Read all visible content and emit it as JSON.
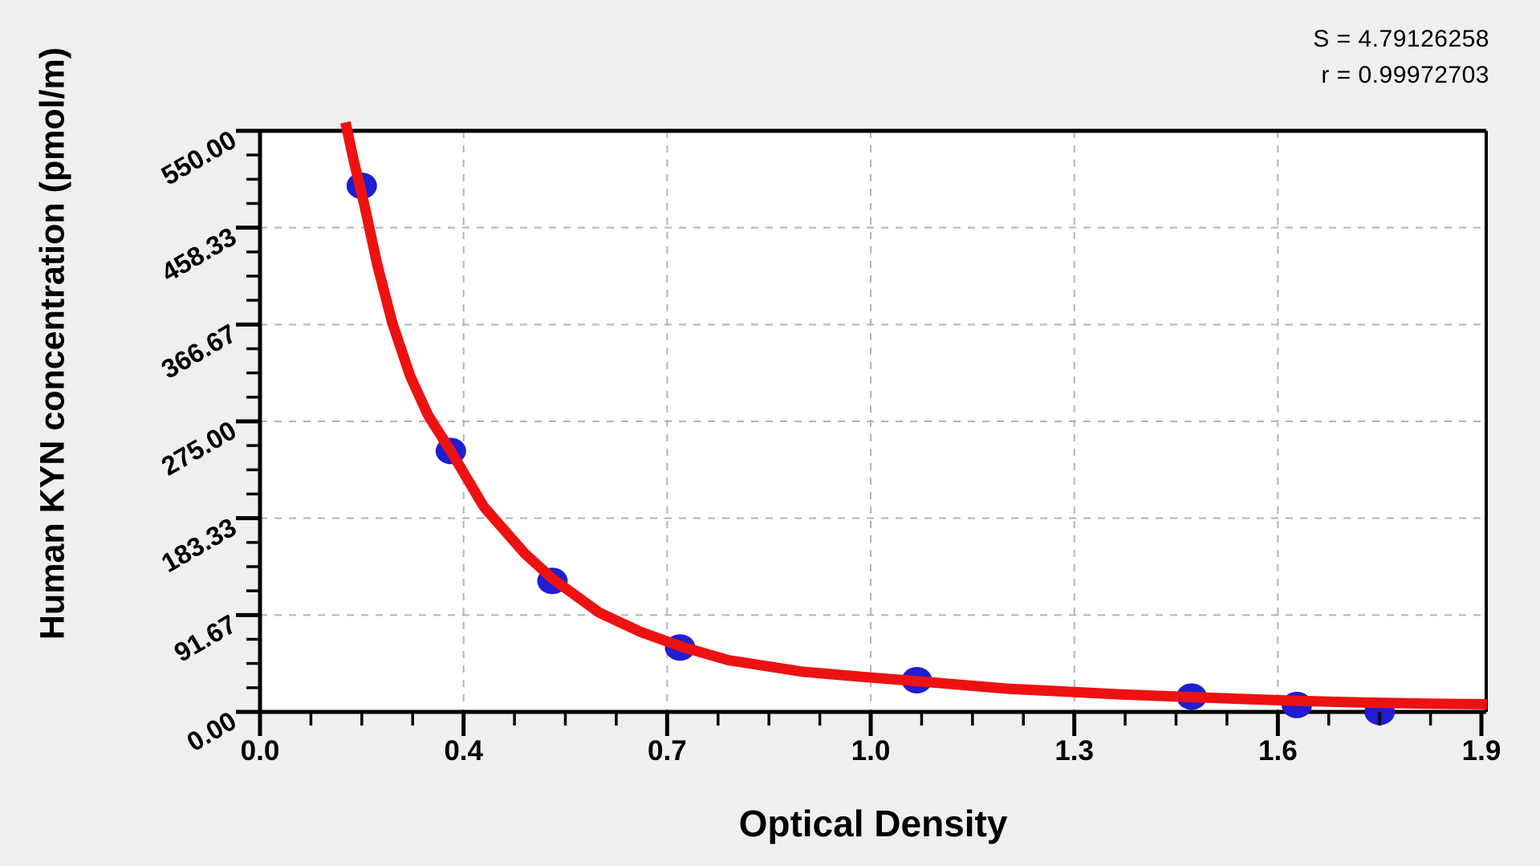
{
  "chart_data": {
    "type": "scatter",
    "title": "",
    "xlabel": "Optical Density",
    "ylabel": "Human KYN concentration (pmol/m)",
    "x_tick_labels": [
      "0.0",
      "0.4",
      "0.7",
      "1.0",
      "1.3",
      "1.6",
      "1.9"
    ],
    "x_tick_values": [
      0.0,
      0.4,
      0.7,
      1.0,
      1.3,
      1.6,
      1.9
    ],
    "y_tick_labels": [
      "0.00",
      "91.67",
      "183.33",
      "275.00",
      "366.67",
      "458.33",
      "550.00"
    ],
    "y_tick_values": [
      0.0,
      91.67,
      183.33,
      275.0,
      366.67,
      458.33,
      550.0
    ],
    "xlim": [
      0.0,
      1.9
    ],
    "ylim": [
      0.0,
      550.0
    ],
    "grid": "dashed",
    "legend_position": "none",
    "annotations": [
      "S = 4.79126258",
      "r = 0.99972703"
    ],
    "series": [
      {
        "name": "standard-points",
        "type": "scatter",
        "color": "#1e1ed2",
        "points": [
          [
            0.2,
            498
          ],
          [
            0.375,
            247
          ],
          [
            0.531,
            124
          ],
          [
            0.719,
            61
          ],
          [
            1.068,
            30
          ],
          [
            1.473,
            14.5
          ],
          [
            1.628,
            6.5
          ],
          [
            1.75,
            0
          ]
        ]
      },
      {
        "name": "fitted-curve",
        "type": "line",
        "color": "#ee1111",
        "points": [
          [
            0.168,
            558
          ],
          [
            0.185,
            520
          ],
          [
            0.205,
            480
          ],
          [
            0.23,
            424
          ],
          [
            0.26,
            368
          ],
          [
            0.295,
            318
          ],
          [
            0.33,
            281
          ],
          [
            0.376,
            246
          ],
          [
            0.43,
            194
          ],
          [
            0.49,
            150
          ],
          [
            0.531,
            126
          ],
          [
            0.6,
            94
          ],
          [
            0.66,
            76
          ],
          [
            0.72,
            62
          ],
          [
            0.79,
            49
          ],
          [
            0.9,
            38
          ],
          [
            1.0,
            32.5
          ],
          [
            1.07,
            29
          ],
          [
            1.2,
            22
          ],
          [
            1.37,
            16.5
          ],
          [
            1.475,
            14
          ],
          [
            1.56,
            12
          ],
          [
            1.63,
            10.5
          ],
          [
            1.73,
            8.8
          ],
          [
            1.82,
            7.8
          ],
          [
            1.91,
            7.2
          ]
        ]
      }
    ]
  },
  "colors": {
    "background": "#efefef",
    "plot_background": "#ffffff",
    "gridline": "#b4b4b4",
    "axis": "#000000",
    "point_fill": "#1e1ed2",
    "curve_stroke": "#ee1111",
    "text": "#000000"
  }
}
